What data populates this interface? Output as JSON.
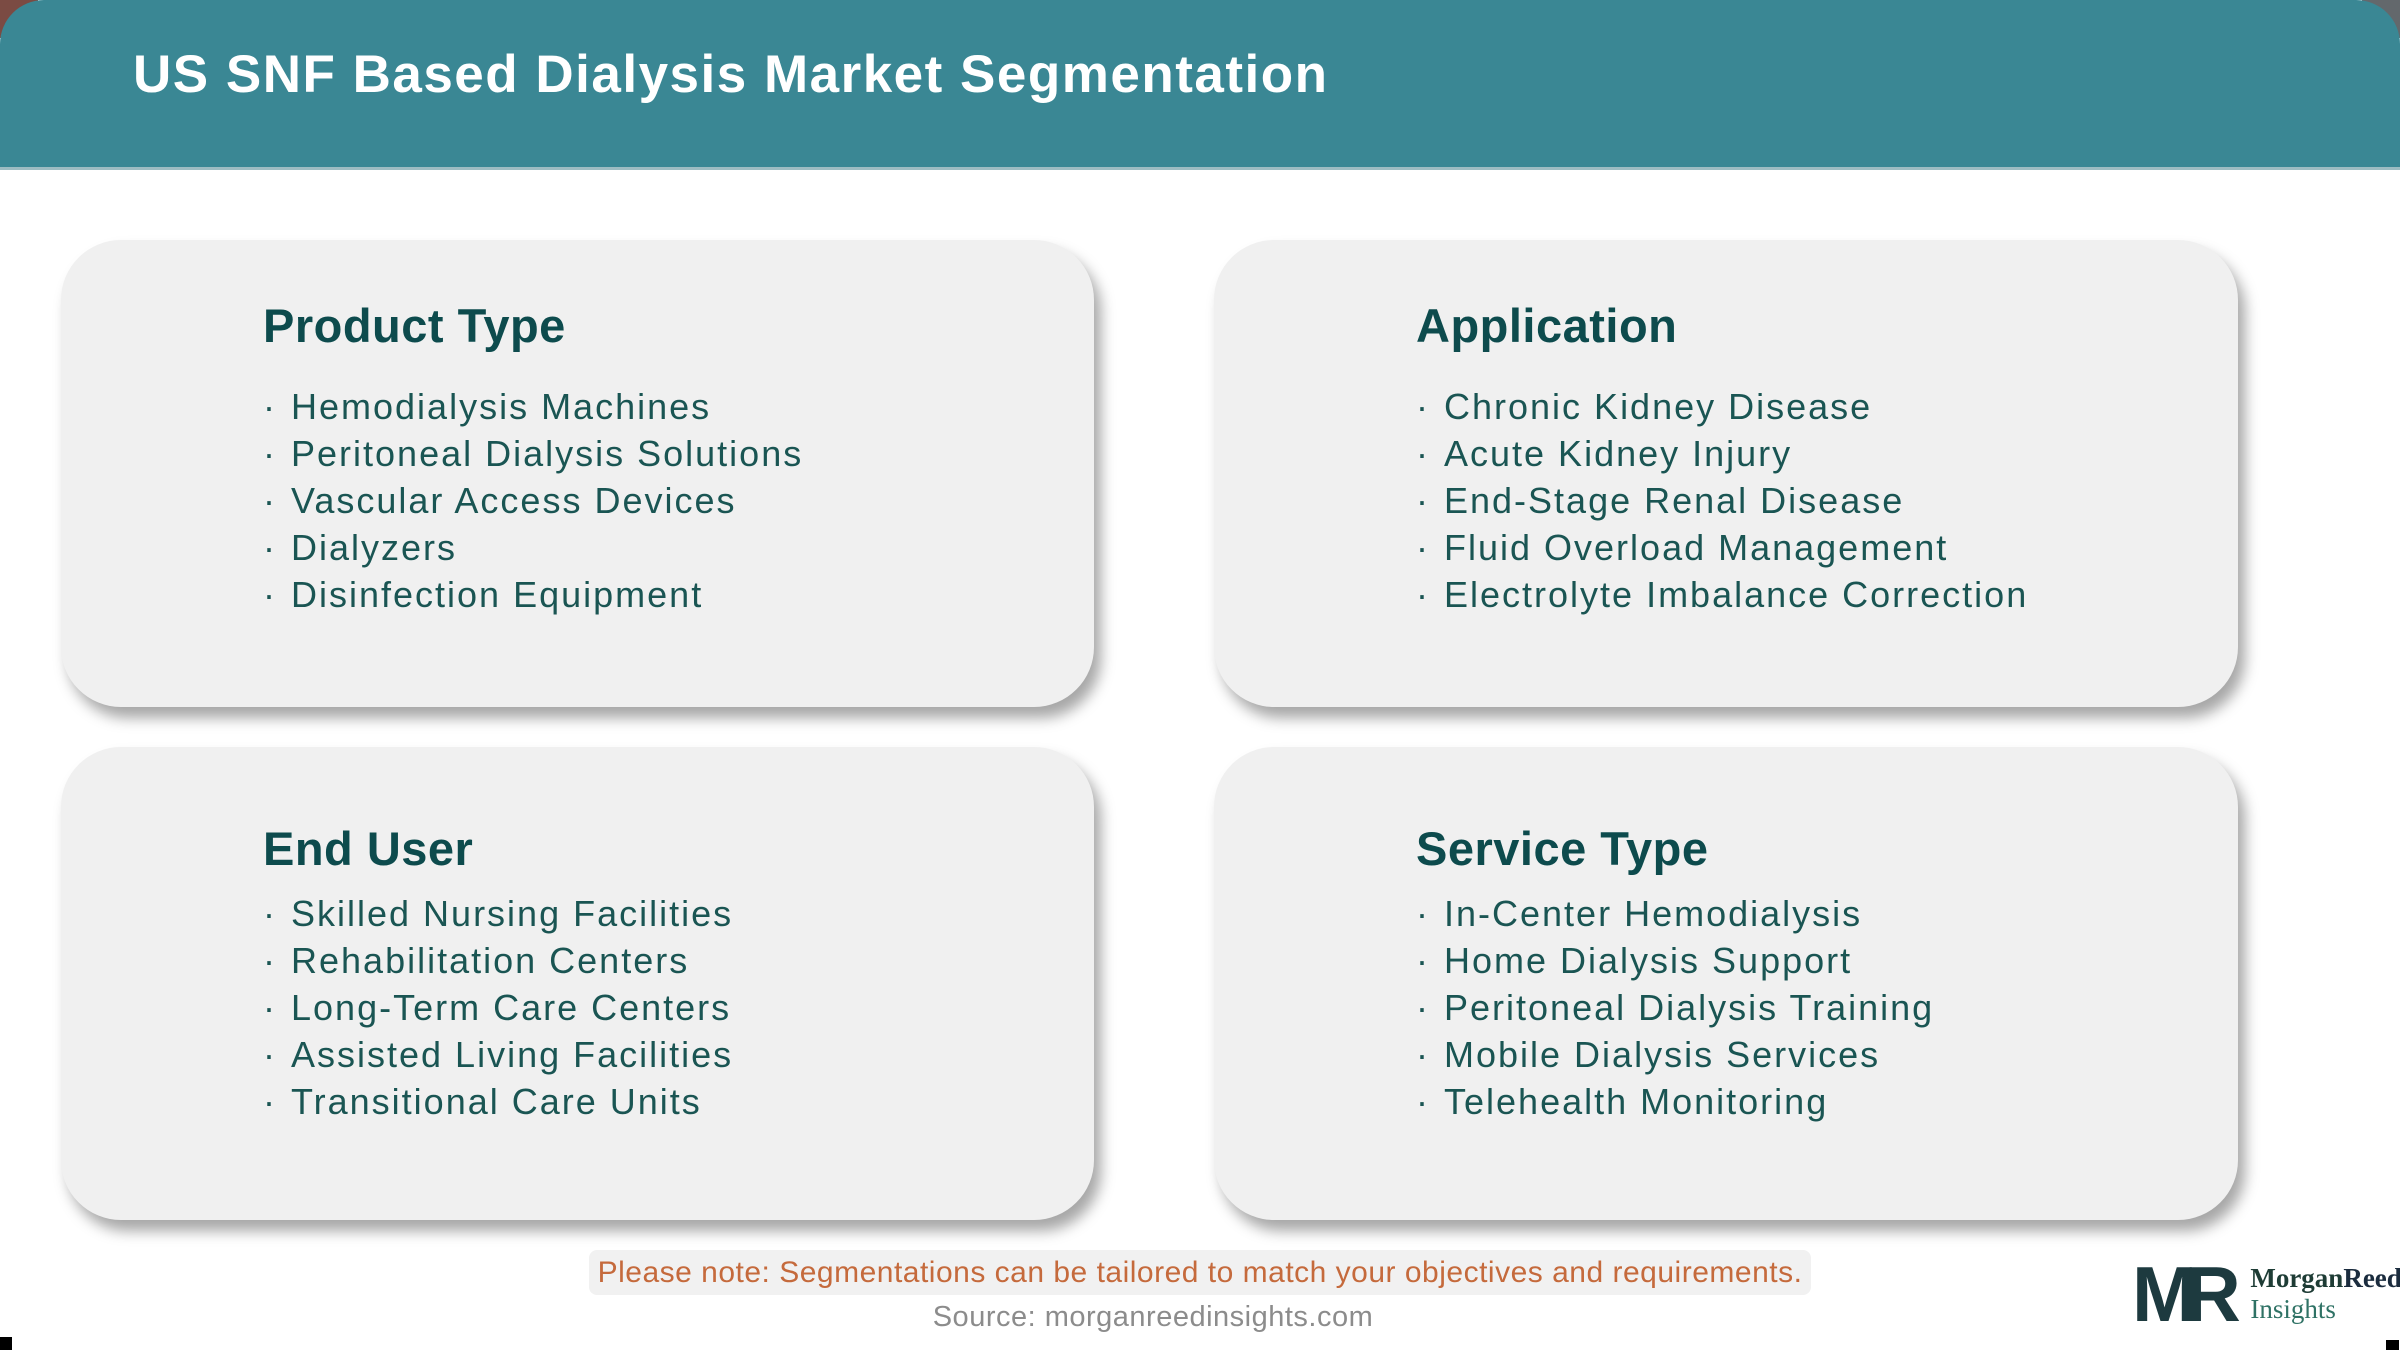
{
  "header": {
    "title": "US SNF Based Dialysis Market Segmentation"
  },
  "bullet_char": "·",
  "cards": [
    {
      "title": "Product Type",
      "items": [
        "Hemodialysis Machines",
        "Peritoneal Dialysis Solutions",
        "Vascular Access Devices",
        "Dialyzers",
        "Disinfection Equipment"
      ]
    },
    {
      "title": "Application",
      "items": [
        "Chronic Kidney Disease",
        "Acute Kidney Injury",
        "End-Stage Renal Disease",
        "Fluid Overload Management",
        "Electrolyte Imbalance Correction"
      ]
    },
    {
      "title": "End User",
      "items": [
        "Skilled Nursing Facilities",
        "Rehabilitation Centers",
        "Long-Term Care Centers",
        "Assisted Living Facilities",
        "Transitional Care Units"
      ]
    },
    {
      "title": "Service Type",
      "items": [
        "In-Center Hemodialysis",
        "Home Dialysis Support",
        "Peritoneal Dialysis Training",
        "Mobile Dialysis Services",
        "Telehealth Monitoring"
      ]
    }
  ],
  "footer": {
    "note": "Please note: Segmentations can be tailored to match your objectives and requirements.",
    "source": "Source: morganreedinsights.com"
  },
  "logo": {
    "monogram": "MR",
    "name_primary": "Morgan",
    "name_secondary": "Reed",
    "tagline": "Insights"
  },
  "colors": {
    "header_bg": "#3A8794",
    "header_text": "#FFFFFF",
    "card_bg": "#F0F0F0",
    "card_title": "#0D4B4D",
    "card_item": "#1A5553",
    "note_bg": "#F1F1F1",
    "note_text": "#C56A3C",
    "source_text": "#8C8C8C",
    "logo_dark": "#1D3A3F",
    "logo_morgan": "#1E3C35",
    "logo_reed": "#1B2C3E",
    "logo_insights": "#2F7265"
  }
}
